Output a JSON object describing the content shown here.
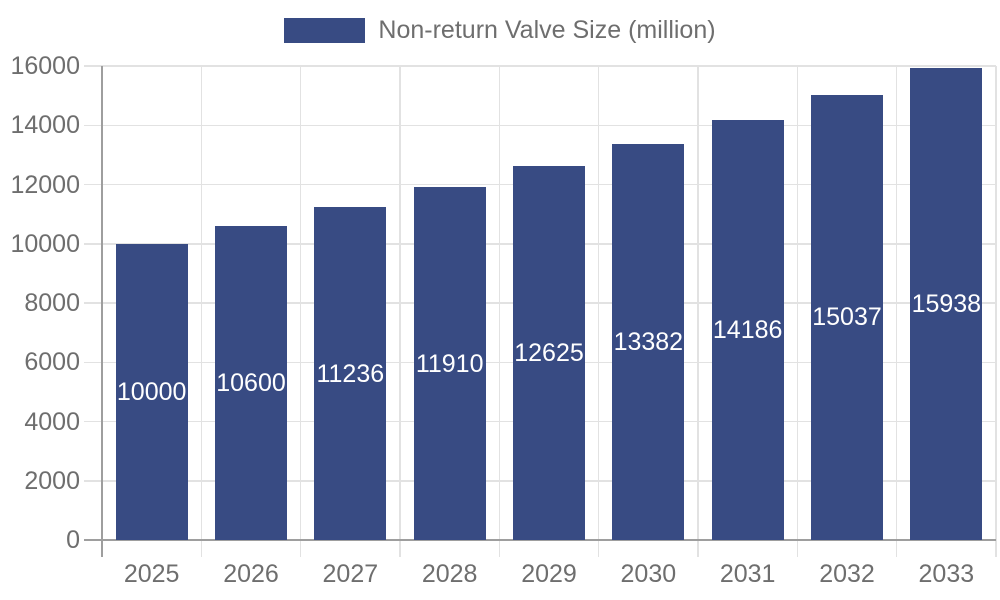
{
  "legend": {
    "label": "Non-return Valve Size (million)"
  },
  "chart_data": {
    "type": "bar",
    "title": "",
    "categories": [
      "2025",
      "2026",
      "2027",
      "2028",
      "2029",
      "2030",
      "2031",
      "2032",
      "2033"
    ],
    "series": [
      {
        "name": "Non-return Valve Size (million)",
        "values": [
          10000,
          10600,
          11236,
          11910,
          12625,
          13382,
          14186,
          15037,
          15938
        ]
      }
    ],
    "xlabel": "",
    "ylabel": "",
    "ylim": [
      0,
      16000
    ],
    "ytick_step": 2000,
    "ytick_labels": [
      "0",
      "2000",
      "4000",
      "6000",
      "8000",
      "10000",
      "12000",
      "14000",
      "16000"
    ],
    "grid": "horizontal and vertical light gray gridlines",
    "legend_position": "top-center",
    "value_label_position": "inside-center"
  },
  "colors": {
    "bar": "#384B83",
    "grid": "#E2E2E2",
    "axis": "#9E9E9E",
    "tick_text": "#6E6E6E",
    "value_label_text": "#FFFFFF",
    "background": "#FFFFFF"
  }
}
